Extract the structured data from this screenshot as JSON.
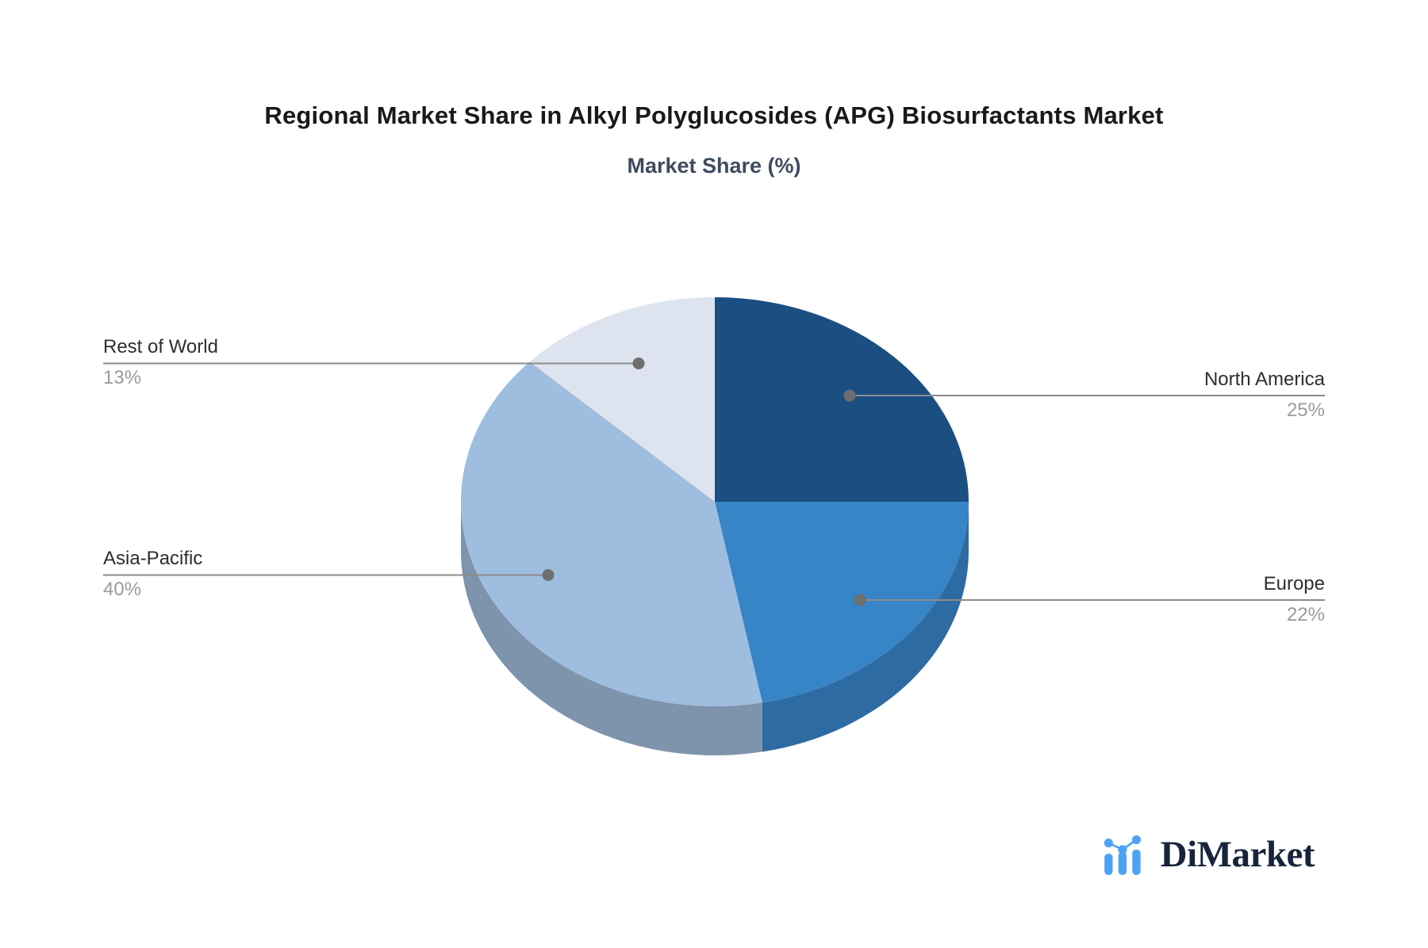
{
  "title": "Regional Market Share in Alkyl Polyglucosides (APG) Biosurfactants Market",
  "subtitle": "Market Share (%)",
  "chart_data": {
    "type": "pie",
    "style": "3d",
    "title": "Regional Market Share in Alkyl Polyglucosides (APG) Biosurfactants Market",
    "subtitle": "Market Share (%)",
    "unit": "%",
    "start_angle_deg": 0,
    "direction": "clockwise",
    "legend_position": "callout-labels",
    "slices": [
      {
        "label": "North America",
        "value": 25,
        "display": "25%",
        "color": "#1B4F82",
        "side_color": "#163F68",
        "label_side": "right"
      },
      {
        "label": "Europe",
        "value": 22,
        "display": "22%",
        "color": "#3784C7",
        "side_color": "#2D6BA2",
        "label_side": "right"
      },
      {
        "label": "Asia-Pacific",
        "value": 40,
        "display": "40%",
        "color": "#9FBDDE",
        "side_color": "#7E93AC",
        "label_side": "left"
      },
      {
        "label": "Rest of World",
        "value": 13,
        "display": "13%",
        "color": "#DDE4EF",
        "side_color": "#B8C2D4",
        "label_side": "left"
      }
    ]
  },
  "brand": {
    "name": "DiMarket",
    "icon": "bar-line-chart-icon",
    "icon_color": "#4DA3F3",
    "text_color": "#17243C"
  },
  "colors": {
    "leader_line": "#8C8C8C",
    "leader_dot": "#6E6E6E",
    "label_text": "#2E2E2E",
    "pct_text": "#9A9A9A"
  }
}
